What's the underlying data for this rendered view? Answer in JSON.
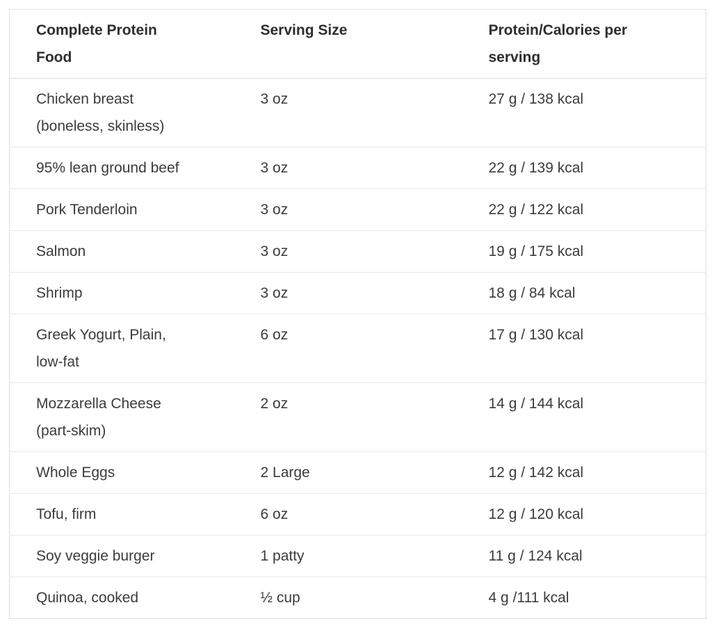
{
  "chart_data": {
    "type": "table",
    "columns": [
      "Complete Protein\nFood",
      "Serving Size",
      "Protein/Calories per\nserving"
    ],
    "rows": [
      [
        "Chicken breast\n(boneless, skinless)",
        "3 oz",
        "27 g / 138 kcal"
      ],
      [
        "95% lean ground beef",
        "3 oz",
        "22 g / 139 kcal"
      ],
      [
        "Pork Tenderloin",
        "3 oz",
        "22 g / 122 kcal"
      ],
      [
        "Salmon",
        "3 oz",
        "19 g / 175 kcal"
      ],
      [
        "Shrimp",
        "3 oz",
        "18 g / 84 kcal"
      ],
      [
        "Greek Yogurt, Plain,\nlow-fat",
        "6 oz",
        "17 g / 130 kcal"
      ],
      [
        "Mozzarella Cheese\n(part-skim)",
        "2 oz",
        "14 g / 144 kcal"
      ],
      [
        "Whole Eggs",
        "2 Large",
        "12 g / 142 kcal"
      ],
      [
        "Tofu, firm",
        "6 oz",
        "12 g / 120 kcal"
      ],
      [
        "Soy veggie burger",
        "1 patty",
        "11 g / 124 kcal"
      ],
      [
        "Quinoa, cooked",
        "½ cup",
        "4 g /111 kcal"
      ]
    ],
    "layout": {
      "legend": "none",
      "grid": "horizontal-row-dividers",
      "header_style": "bold",
      "border_color": "#e0e0e0",
      "divider_color": "#e8e8e8",
      "header_text_color": "#2e2e2e",
      "body_text_color": "#3b3b3b",
      "background_color": "#ffffff"
    }
  }
}
